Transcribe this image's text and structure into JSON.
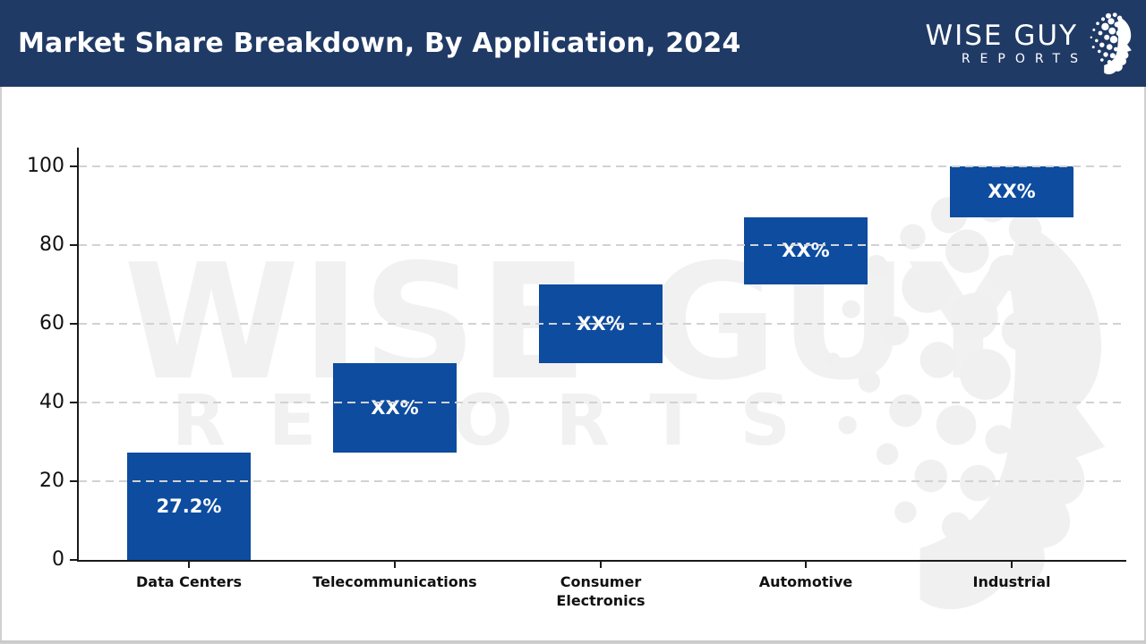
{
  "header": {
    "title": "Market Share Breakdown, By Application, 2024",
    "logo": {
      "line1": "WISE GUY",
      "line2": "REPORTS"
    }
  },
  "watermark": {
    "line1": "WISE GUY",
    "line2": "REPORTS"
  },
  "chart_data": {
    "type": "bar",
    "subtype": "waterfall-floating-bars",
    "title": "Market Share Breakdown, By Application, 2024",
    "categories": [
      "Data Centers",
      "Telecommunications",
      "Consumer\nElectronics",
      "Automotive",
      "Industrial"
    ],
    "bars": [
      {
        "category": "Data Centers",
        "start": 0,
        "end": 27.2,
        "label": "27.2%"
      },
      {
        "category": "Telecommunications",
        "start": 27.2,
        "end": 50,
        "label": "XX%"
      },
      {
        "category": "Consumer Electronics",
        "start": 50,
        "end": 70,
        "label": "XX%"
      },
      {
        "category": "Automotive",
        "start": 70,
        "end": 87,
        "label": "XX%"
      },
      {
        "category": "Industrial",
        "start": 87,
        "end": 100,
        "label": "XX%"
      }
    ],
    "xlabel": "",
    "ylabel": "",
    "ylim": [
      0,
      100
    ],
    "yticks": [
      0,
      20,
      40,
      60,
      80,
      100
    ],
    "grid": "horizontal dashed, drawn above bars",
    "legend": "none",
    "bar_color": "#0d4c9f",
    "label_color": "#ffffff"
  },
  "colors": {
    "header_bg": "#203a66",
    "bar": "#0d4c9f",
    "watermark": "#f1f1f1",
    "gridline": "#d2d2d2",
    "axis": "#1a1a1a"
  }
}
